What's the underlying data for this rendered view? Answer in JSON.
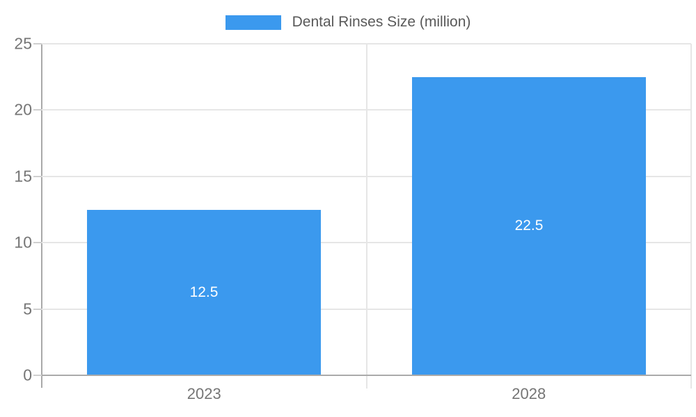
{
  "legend": {
    "label": "Dental Rinses Size (million)",
    "position": "top"
  },
  "chart_data": {
    "type": "bar",
    "title": "",
    "categories": [
      "2023",
      "2028"
    ],
    "series": [
      {
        "name": "Dental Rinses Size (million)",
        "values": [
          12.5,
          22.5
        ],
        "data_labels": [
          "12.5",
          "22.5"
        ],
        "color": "#3b99ee"
      }
    ],
    "xlabel": "",
    "ylabel": "",
    "ylim": [
      0,
      25
    ],
    "yticks": [
      0,
      5,
      10,
      15,
      20,
      25
    ],
    "ytick_labels": [
      "0",
      "5",
      "10",
      "15",
      "20",
      "25"
    ],
    "grid": true,
    "legend_position": "top-center"
  },
  "colors": {
    "bar": "#3b99ee",
    "gridline": "#e6e6e6",
    "axis_line": "#aaaaaa",
    "tick": "#cfcfcf",
    "axis_label_text": "#757575",
    "legend_text": "#595959",
    "bar_label_text": "#ffffff",
    "background": "#ffffff"
  }
}
